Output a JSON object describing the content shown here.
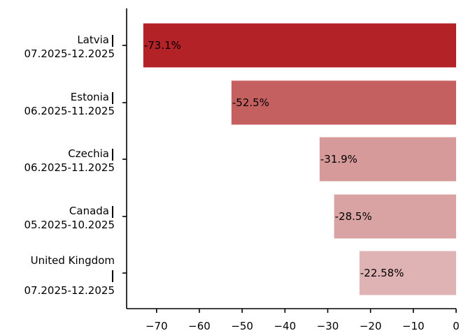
{
  "chart_data": {
    "type": "bar",
    "orientation": "horizontal",
    "title": "",
    "xlabel": "",
    "ylabel": "",
    "xlim": [
      -77,
      0
    ],
    "xticks": [
      -70,
      -60,
      -50,
      -40,
      -30,
      -20,
      -10,
      0
    ],
    "xtick_labels": [
      "−70",
      "−60",
      "−50",
      "−40",
      "−30",
      "−20",
      "−10",
      "0"
    ],
    "grid": false,
    "legend": "none",
    "categories": [
      {
        "name": "Latvia",
        "period": "07.2025-12.2025"
      },
      {
        "name": "Estonia",
        "period": "06.2025-11.2025"
      },
      {
        "name": "Czechia",
        "period": "06.2025-11.2025"
      },
      {
        "name": "Canada",
        "period": "05.2025-10.2025"
      },
      {
        "name": "United Kingdom",
        "period": "07.2025-12.2025"
      }
    ],
    "values": [
      -73.1,
      -52.5,
      -31.9,
      -28.5,
      -22.58
    ],
    "data_labels": [
      "-73.1%",
      "-52.5%",
      "-31.9%",
      "-28.5%",
      "-22.58%"
    ],
    "colors": [
      "#b22226",
      "#c56061",
      "#d79a9a",
      "#d9a3a3",
      "#dfb2b3"
    ]
  }
}
